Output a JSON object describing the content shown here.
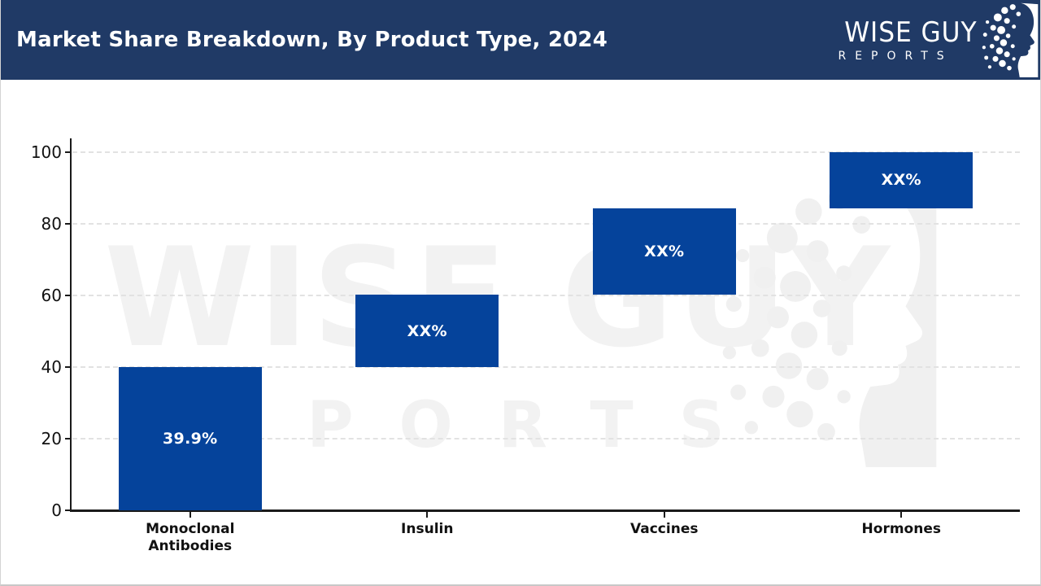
{
  "header": {
    "title": "Market Share Breakdown, By Product Type, 2024",
    "logo": {
      "line1": "WISE GUY",
      "line2": "REPORTS"
    }
  },
  "watermark": {
    "line1": "WISE GUY",
    "line2": "REPORTS"
  },
  "chart_data": {
    "type": "bar",
    "subtype": "waterfall",
    "title": "Market Share Breakdown, By Product Type, 2024",
    "categories": [
      "Monoclonal Antibodies",
      "Insulin",
      "Vaccines",
      "Hormones"
    ],
    "category_labels": [
      "Monoclonal\nAntibodies",
      "Insulin",
      "Vaccines",
      "Hormones"
    ],
    "segments": [
      {
        "category": "Monoclonal Antibodies",
        "start": 0,
        "end": 39.9,
        "label": "39.9%"
      },
      {
        "category": "Insulin",
        "start": 39.9,
        "end": 60.2,
        "label": "XX%"
      },
      {
        "category": "Vaccines",
        "start": 60.2,
        "end": 84.3,
        "label": "XX%"
      },
      {
        "category": "Hormones",
        "start": 84.4,
        "end": 100,
        "label": "XX%"
      }
    ],
    "xlabel": "",
    "ylabel": "",
    "ylim": [
      0,
      100
    ],
    "yticks": [
      0,
      20,
      40,
      60,
      80,
      100
    ],
    "grid": "horizontal-dashed",
    "legend": "none",
    "bar_color": "#05439b",
    "bar_label_color": "#ffffff"
  },
  "colors": {
    "header_bg": "#203a66",
    "bar": "#05439b",
    "grid": "#e2e2e2",
    "axis": "#1a1a1a",
    "watermark": "#f2f2f2",
    "title_text": "#ffffff"
  }
}
